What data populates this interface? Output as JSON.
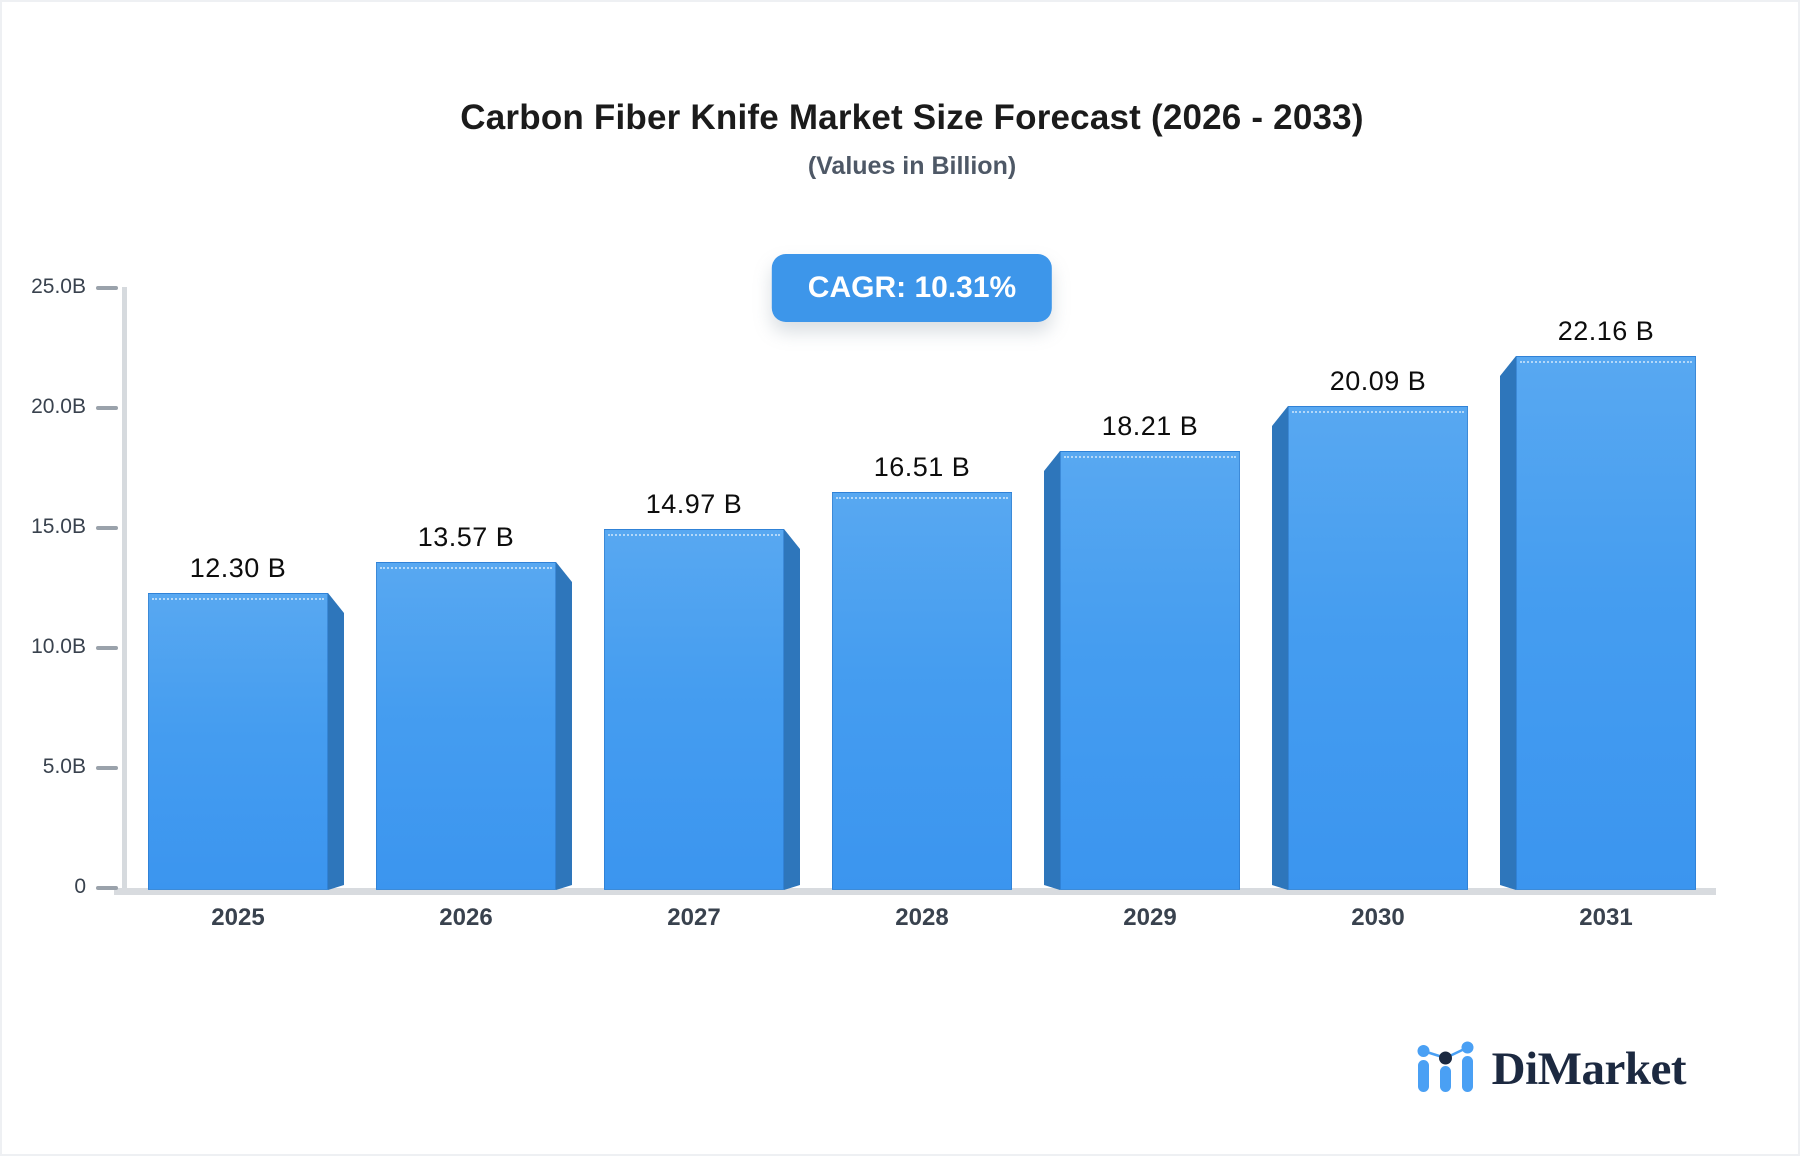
{
  "title": "Carbon Fiber Knife Market Size Forecast (2026 - 2033)",
  "subtitle": "(Values in Billion)",
  "badge": {
    "label": "CAGR: 10.31%",
    "bg_color": "#3d96ea",
    "text_color": "#ffffff"
  },
  "chart_data": {
    "type": "bar",
    "title": "Carbon Fiber Knife Market Size Forecast (2026 - 2033)",
    "subtitle": "(Values in Billion)",
    "categories": [
      "2025",
      "2026",
      "2027",
      "2028",
      "2029",
      "2030",
      "2031"
    ],
    "values": [
      12.3,
      13.57,
      14.97,
      16.51,
      18.21,
      20.09,
      22.16
    ],
    "value_labels": [
      "12.30 B",
      "13.57 B",
      "14.97 B",
      "16.51 B",
      "18.21 B",
      "20.09 B",
      "22.16 B"
    ],
    "ylim": [
      0,
      25
    ],
    "yticks": {
      "values": [
        25,
        20,
        15,
        10,
        5,
        0
      ],
      "labels": [
        "25.0B",
        "20.0B",
        "15.0B",
        "10.0B",
        "5.0B",
        "0"
      ]
    },
    "grid": false,
    "legend": null,
    "bar_color": "#3f98f0",
    "bar_side_color": "#2e76bb",
    "axis_color": "#d8dbdf",
    "label_color": "#39424e"
  },
  "logo": {
    "text": "DiMarket",
    "icon": "bar-chart-icon",
    "text_color": "#1c2940",
    "accent_color": "#4aa0f4"
  }
}
